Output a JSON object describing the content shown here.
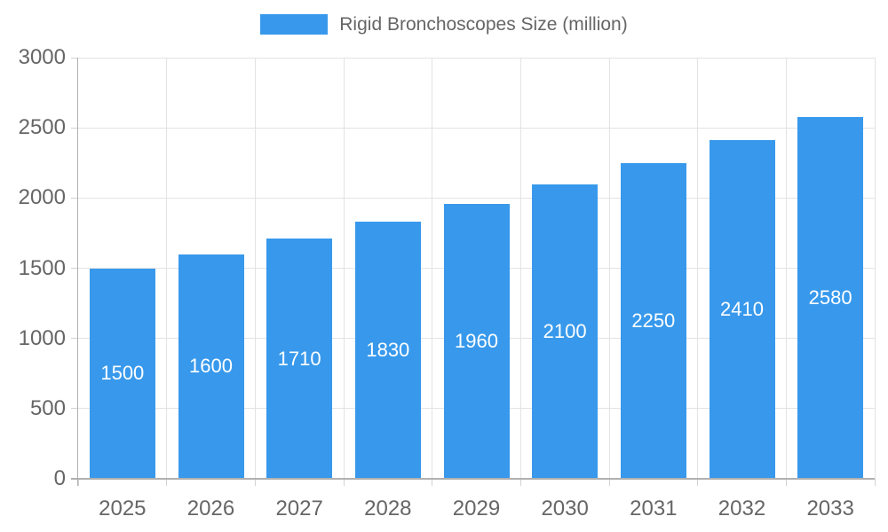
{
  "chart_data": {
    "type": "bar",
    "title": "",
    "legend": {
      "label": "Rigid Bronchoscopes Size (million)",
      "position": "top"
    },
    "categories": [
      "2025",
      "2026",
      "2027",
      "2028",
      "2029",
      "2030",
      "2031",
      "2032",
      "2033"
    ],
    "series": [
      {
        "name": "Rigid Bronchoscopes Size (million)",
        "values": [
          1500,
          1600,
          1710,
          1830,
          1960,
          2100,
          2250,
          2410,
          2580
        ]
      }
    ],
    "value_labels": [
      "1500",
      "1600",
      "1710",
      "1830",
      "1960",
      "2100",
      "2250",
      "2410",
      "2580"
    ],
    "xlabel": "",
    "ylabel": "",
    "ylim": [
      0,
      3000
    ],
    "yticks": [
      0,
      500,
      1000,
      1500,
      2000,
      2500,
      3000
    ],
    "ytick_labels": [
      "0",
      "500",
      "1000",
      "1500",
      "2000",
      "2500",
      "3000"
    ],
    "grid": true,
    "colors": {
      "bar": "#3899EC",
      "bar_value_text": "#FFFFFF",
      "axis_text": "#666666",
      "grid_line": "#E3E3E3",
      "axis_line": "#B0B0B0",
      "tick_mark": "#D2D2D2",
      "background": "#FFFFFF"
    }
  }
}
